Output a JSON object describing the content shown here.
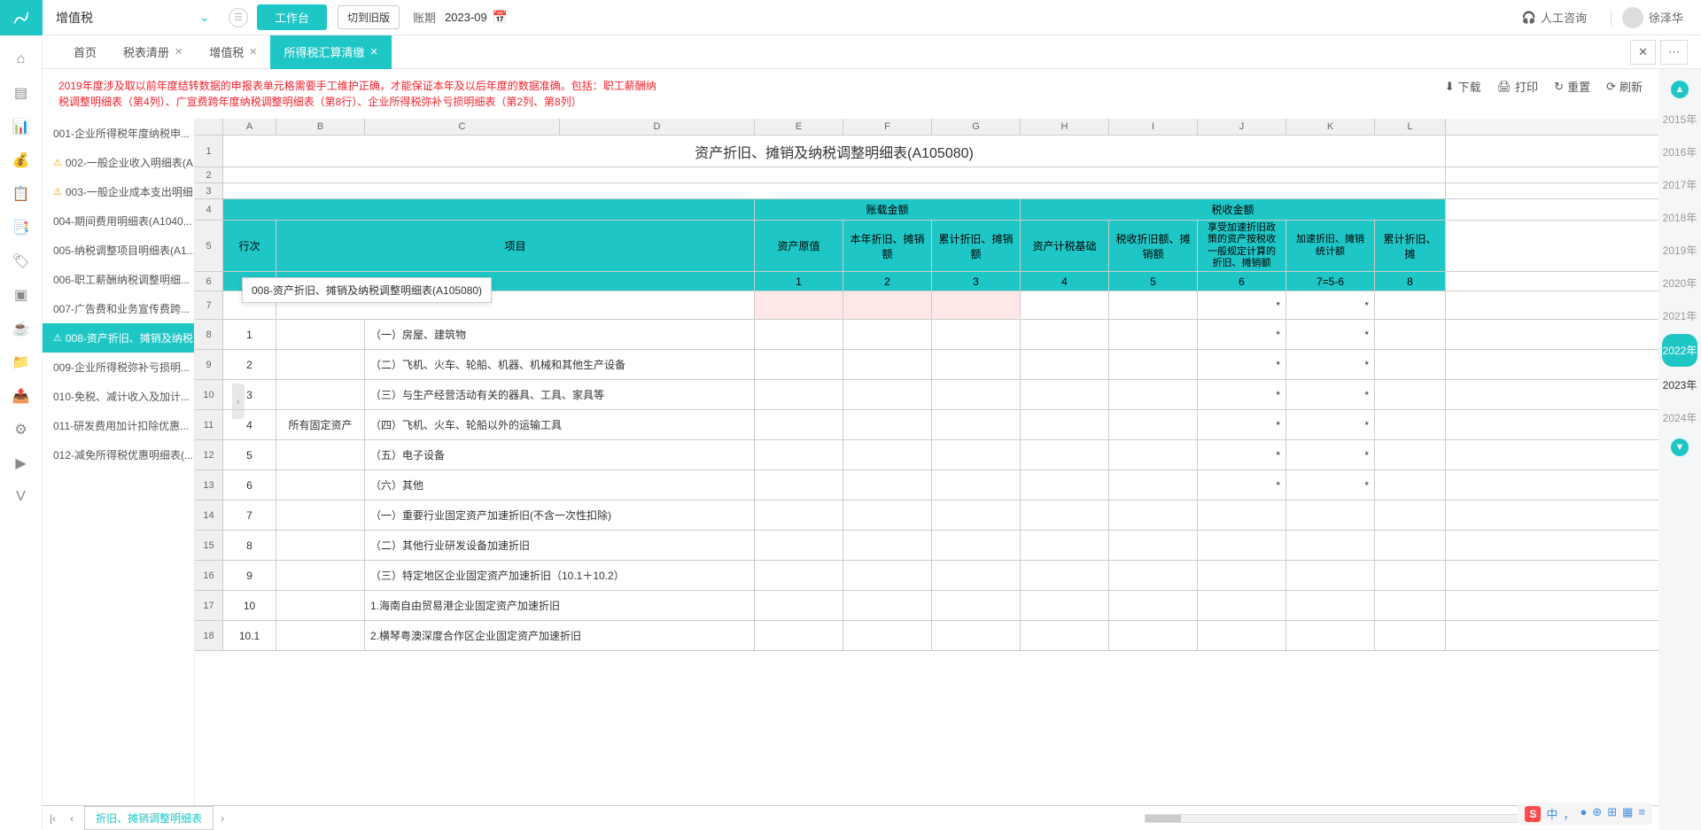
{
  "header": {
    "dropdown": "增值税",
    "workbench": "工作台",
    "switch_old": "切到旧版",
    "period_label": "账期",
    "period_value": "2023-09",
    "consult": "人工咨询",
    "user": "徐泽华"
  },
  "tabs": [
    {
      "label": "首页",
      "closable": false
    },
    {
      "label": "税表清册",
      "closable": true
    },
    {
      "label": "增值税",
      "closable": true
    },
    {
      "label": "所得税汇算清缴",
      "closable": true,
      "active": true
    }
  ],
  "notice": "2019年度涉及取以前年度结转数据的申报表单元格需要手工维护正确，才能保证本年及以后年度的数据准确。包括：职工薪酬纳税调整明细表（第4列）、广宣费跨年度纳税调整明细表（第8行）、企业所得税弥补亏损明细表（第2列、第8列）",
  "actions": {
    "download": "下载",
    "print": "打印",
    "reset": "重置",
    "refresh": "刷新"
  },
  "forms": [
    {
      "label": "001-企业所得税年度纳税申...",
      "warn": false
    },
    {
      "label": "002-一般企业收入明细表(A1...",
      "warn": true
    },
    {
      "label": "003-一般企业成本支出明细...",
      "warn": true
    },
    {
      "label": "004-期间费用明细表(A1040...",
      "warn": false
    },
    {
      "label": "005-纳税调整项目明细表(A1...",
      "warn": false
    },
    {
      "label": "006-职工薪酬纳税调整明细...",
      "warn": false
    },
    {
      "label": "007-广告费和业务宣传费跨...",
      "warn": false
    },
    {
      "label": "008-资产折旧、摊销及纳税...",
      "warn": true,
      "active": true
    },
    {
      "label": "009-企业所得税弥补亏损明...",
      "warn": false
    },
    {
      "label": "010-免税、减计收入及加计...",
      "warn": false
    },
    {
      "label": "011-研发费用加计扣除优惠...",
      "warn": false
    },
    {
      "label": "012-减免所得税优惠明细表(...",
      "warn": false
    }
  ],
  "tooltip": "008-资产折旧、摊销及纳税调整明细表(A105080)",
  "years": [
    "2015年",
    "2016年",
    "2017年",
    "2018年",
    "2019年",
    "2020年",
    "2021年",
    "2022年",
    "2023年",
    "2024年"
  ],
  "year_active": "2022年",
  "year_current": "2023年",
  "sheet": {
    "title": "资产折旧、摊销及纳税调整明细表(A105080)",
    "cols": [
      "A",
      "B",
      "C",
      "D",
      "E",
      "F",
      "G",
      "H",
      "I",
      "J",
      "K",
      "L"
    ],
    "header1": {
      "account": "账载金额",
      "tax": "税收金额"
    },
    "header2": {
      "rowno": "行次",
      "item": "项目",
      "c1": "资产原值",
      "c2": "本年折旧、摊销额",
      "c3": "累计折旧、摊销额",
      "c4": "资产计税基础",
      "c5": "税收折旧额、摊销额",
      "c6": "享受加速折旧政策的资产按税收一般规定计算的折旧、摊销额",
      "c7": "加速折旧、摊销统计额",
      "c8": "累计折旧、摊"
    },
    "header3": [
      "1",
      "2",
      "3",
      "4",
      "5",
      "6",
      "7=5-6",
      "8"
    ],
    "category": "所有固定资产",
    "rows": [
      {
        "rn": "8",
        "no": "1",
        "item": "（一）房屋、建筑物"
      },
      {
        "rn": "9",
        "no": "2",
        "item": "（二）飞机、火车、轮船、机器、机械和其他生产设备"
      },
      {
        "rn": "10",
        "no": "3",
        "item": "（三）与生产经营活动有关的器具、工具、家具等"
      },
      {
        "rn": "11",
        "no": "4",
        "item": "（四）飞机、火车、轮船以外的运输工具"
      },
      {
        "rn": "12",
        "no": "5",
        "item": "（五）电子设备"
      },
      {
        "rn": "13",
        "no": "6",
        "item": "（六）其他"
      },
      {
        "rn": "14",
        "no": "7",
        "item": "（一）重要行业固定资产加速折旧(不含一次性扣除)"
      },
      {
        "rn": "15",
        "no": "8",
        "item": "（二）其他行业研发设备加速折旧"
      },
      {
        "rn": "16",
        "no": "9",
        "item": "（三）特定地区企业固定资产加速折旧（10.1＋10.2）"
      },
      {
        "rn": "17",
        "no": "10",
        "item": "1.海南自由贸易港企业固定资产加速折旧"
      },
      {
        "rn": "18",
        "no": "10.1",
        "item": "2.横琴粤澳深度合作区企业固定资产加速折旧"
      }
    ],
    "bottom_tab": "折旧、摊销调整明细表"
  },
  "ime": {
    "logo": "S",
    "items": [
      "中",
      "，",
      "●",
      "⊕",
      "⊞",
      "▦",
      "≡"
    ]
  },
  "colw": {
    "A": 60,
    "B": 100,
    "CD": 440,
    "E": 100,
    "F": 100,
    "G": 100,
    "H": 100,
    "I": 100,
    "J": 100,
    "K": 100,
    "L": 80
  }
}
